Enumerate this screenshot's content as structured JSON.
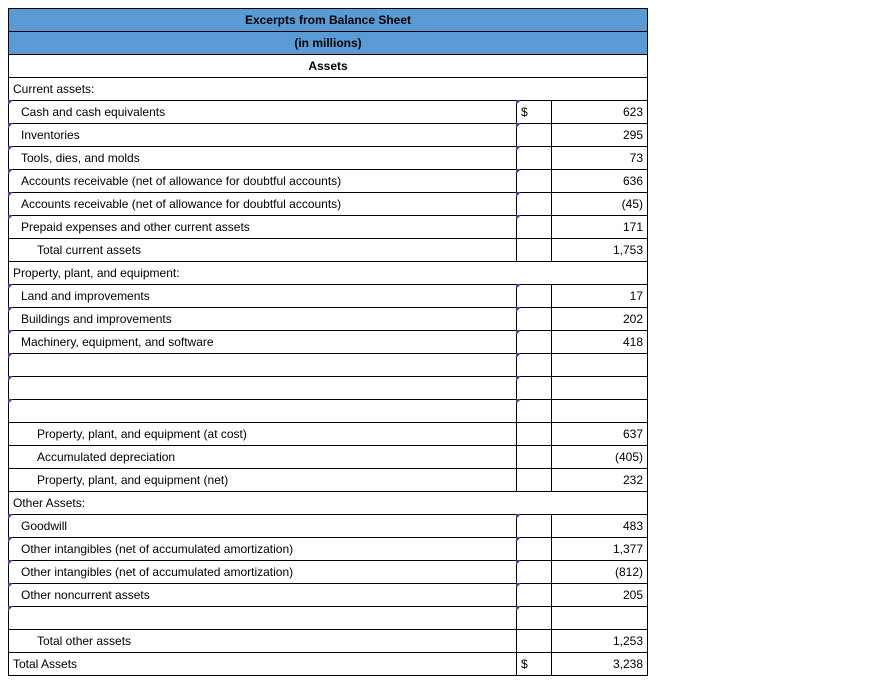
{
  "header": {
    "title": "Excerpts from Balance Sheet",
    "subtitle": "(in millions)",
    "section": "Assets"
  },
  "colors": {
    "header_bg": "#5b9bd5",
    "border": "#000000",
    "hint": "#6a2f9c"
  },
  "rows": [
    {
      "label": "Current assets:",
      "indent": 0,
      "sym": "",
      "val": "",
      "hint": false,
      "spanLabel": true
    },
    {
      "label": "Cash and cash equivalents",
      "indent": 1,
      "sym": "$",
      "val": "623",
      "hint": true
    },
    {
      "label": "Inventories",
      "indent": 1,
      "sym": "",
      "val": "295",
      "hint": true
    },
    {
      "label": "Tools, dies, and molds",
      "indent": 1,
      "sym": "",
      "val": "73",
      "hint": true
    },
    {
      "label": "Accounts receivable (net of allowance for doubtful accounts)",
      "indent": 1,
      "sym": "",
      "val": "636",
      "hint": true
    },
    {
      "label": "Accounts receivable (net of allowance for doubtful accounts)",
      "indent": 1,
      "sym": "",
      "val": "(45)",
      "hint": true
    },
    {
      "label": "Prepaid expenses and other current assets",
      "indent": 1,
      "sym": "",
      "val": "171",
      "hint": true
    },
    {
      "label": "Total current assets",
      "indent": 2,
      "sym": "",
      "val": "1,753",
      "hint": false
    },
    {
      "label": "Property, plant, and equipment:",
      "indent": 0,
      "sym": "",
      "val": "",
      "hint": false,
      "spanLabel": true
    },
    {
      "label": "Land and improvements",
      "indent": 1,
      "sym": "",
      "val": "17",
      "hint": true
    },
    {
      "label": "Buildings and improvements",
      "indent": 1,
      "sym": "",
      "val": "202",
      "hint": true
    },
    {
      "label": "Machinery, equipment, and software",
      "indent": 1,
      "sym": "",
      "val": "418",
      "hint": true
    },
    {
      "label": "",
      "indent": 1,
      "sym": "",
      "val": "",
      "hint": true
    },
    {
      "label": "",
      "indent": 1,
      "sym": "",
      "val": "",
      "hint": true
    },
    {
      "label": "",
      "indent": 1,
      "sym": "",
      "val": "",
      "hint": true
    },
    {
      "label": "Property, plant, and equipment (at cost)",
      "indent": 2,
      "sym": "",
      "val": "637",
      "hint": false
    },
    {
      "label": "Accumulated depreciation",
      "indent": 2,
      "sym": "",
      "val": "(405)",
      "hint": false
    },
    {
      "label": "Property, plant, and equipment (net)",
      "indent": 2,
      "sym": "",
      "val": "232",
      "hint": false
    },
    {
      "label": "Other Assets:",
      "indent": 0,
      "sym": "",
      "val": "",
      "hint": false,
      "spanLabel": true
    },
    {
      "label": "Goodwill",
      "indent": 1,
      "sym": "",
      "val": "483",
      "hint": true
    },
    {
      "label": "Other intangibles (net of accumulated amortization)",
      "indent": 1,
      "sym": "",
      "val": "1,377",
      "hint": true
    },
    {
      "label": "Other intangibles (net of accumulated amortization)",
      "indent": 1,
      "sym": "",
      "val": "(812)",
      "hint": true
    },
    {
      "label": "Other noncurrent assets",
      "indent": 1,
      "sym": "",
      "val": "205",
      "hint": true
    },
    {
      "label": "",
      "indent": 1,
      "sym": "",
      "val": "",
      "hint": true
    },
    {
      "label": "Total other assets",
      "indent": 2,
      "sym": "",
      "val": "1,253",
      "hint": false
    },
    {
      "label": "Total Assets",
      "indent": 0,
      "sym": "$",
      "val": "3,238",
      "hint": false
    }
  ]
}
